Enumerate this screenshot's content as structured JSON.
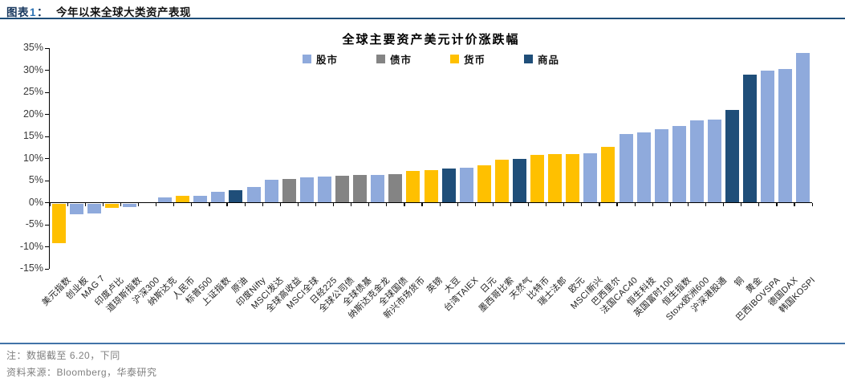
{
  "figure": {
    "label_prefix": "图表",
    "label_number": "1",
    "label_colon": "：",
    "title": "今年以来全球大类资产表现"
  },
  "colors": {
    "stock": "#8FAADC",
    "bond": "#848484",
    "currency": "#FFC000",
    "commodity": "#1F4E79",
    "header_rule": "#1F4E79",
    "bottom_rule": "#4173A8",
    "figure_number_accent": "#2E74B5",
    "axis": "#000000",
    "footer_text": "#808080"
  },
  "chart_data": {
    "type": "bar",
    "title": "全球主要资产美元计价涨跌幅",
    "xlabel": "",
    "ylabel": "",
    "unit": "%",
    "ylim": [
      -15,
      35
    ],
    "ytick_step": 5,
    "ytick_labels": [
      "35%",
      "30%",
      "25%",
      "20%",
      "15%",
      "10%",
      "5%",
      "0%",
      "-5%",
      "-10%",
      "-15%"
    ],
    "grid": false,
    "legend_position": "top-center",
    "legend": [
      {
        "label": "股市",
        "key": "stock"
      },
      {
        "label": "债市",
        "key": "bond"
      },
      {
        "label": "货币",
        "key": "currency"
      },
      {
        "label": "商品",
        "key": "commodity"
      }
    ],
    "bars": [
      {
        "label": "美元指数",
        "value": -9.0,
        "category": "currency"
      },
      {
        "label": "创业板",
        "value": -2.5,
        "category": "stock"
      },
      {
        "label": "MAG 7",
        "value": -2.3,
        "category": "stock"
      },
      {
        "label": "印度卢比",
        "value": -1.0,
        "category": "currency"
      },
      {
        "label": "道琼斯指数",
        "value": -0.8,
        "category": "stock"
      },
      {
        "label": "沪深300",
        "value": 0.0,
        "category": "stock"
      },
      {
        "label": "纳斯达克",
        "value": 1.2,
        "category": "stock"
      },
      {
        "label": "人民币",
        "value": 1.5,
        "category": "currency"
      },
      {
        "label": "标普500",
        "value": 1.6,
        "category": "stock"
      },
      {
        "label": "上证指数",
        "value": 2.5,
        "category": "stock"
      },
      {
        "label": "原油",
        "value": 2.8,
        "category": "commodity"
      },
      {
        "label": "印度Nifty",
        "value": 3.5,
        "category": "stock"
      },
      {
        "label": "MSCI发达",
        "value": 5.2,
        "category": "stock"
      },
      {
        "label": "全球高收益",
        "value": 5.3,
        "category": "bond"
      },
      {
        "label": "MSCI全球",
        "value": 5.7,
        "category": "stock"
      },
      {
        "label": "日经225",
        "value": 6.0,
        "category": "stock"
      },
      {
        "label": "全球公司债",
        "value": 6.1,
        "category": "bond"
      },
      {
        "label": "全球债基",
        "value": 6.2,
        "category": "bond"
      },
      {
        "label": "纳斯达克金龙",
        "value": 6.3,
        "category": "stock"
      },
      {
        "label": "全球国债",
        "value": 6.4,
        "category": "bond"
      },
      {
        "label": "新兴市场货币",
        "value": 7.2,
        "category": "currency"
      },
      {
        "label": "英镑",
        "value": 7.3,
        "category": "currency"
      },
      {
        "label": "大豆",
        "value": 7.8,
        "category": "commodity"
      },
      {
        "label": "台湾TAIEX",
        "value": 7.9,
        "category": "stock"
      },
      {
        "label": "日元",
        "value": 8.5,
        "category": "currency"
      },
      {
        "label": "墨西哥比索",
        "value": 9.7,
        "category": "currency"
      },
      {
        "label": "天然气",
        "value": 10.0,
        "category": "commodity"
      },
      {
        "label": "比特币",
        "value": 10.9,
        "category": "currency"
      },
      {
        "label": "瑞士法郎",
        "value": 11.0,
        "category": "currency"
      },
      {
        "label": "欧元",
        "value": 11.0,
        "category": "currency"
      },
      {
        "label": "MSCI新兴",
        "value": 11.1,
        "category": "stock"
      },
      {
        "label": "巴西里尔",
        "value": 12.6,
        "category": "currency"
      },
      {
        "label": "法国CAC40",
        "value": 15.6,
        "category": "stock"
      },
      {
        "label": "恒生科技",
        "value": 15.9,
        "category": "stock"
      },
      {
        "label": "英国富时100",
        "value": 16.7,
        "category": "stock"
      },
      {
        "label": "恒生指数",
        "value": 17.3,
        "category": "stock"
      },
      {
        "label": "Stoxx欧洲600",
        "value": 18.7,
        "category": "stock"
      },
      {
        "label": "沪深港股通",
        "value": 18.8,
        "category": "stock"
      },
      {
        "label": "铜",
        "value": 21.0,
        "category": "commodity"
      },
      {
        "label": "黄金",
        "value": 29.0,
        "category": "commodity"
      },
      {
        "label": "巴西IBOVSPA",
        "value": 30.0,
        "category": "stock"
      },
      {
        "label": "德国DAX",
        "value": 30.3,
        "category": "stock"
      },
      {
        "label": "韩国KOSPI",
        "value": 33.9,
        "category": "stock"
      }
    ]
  },
  "footer": {
    "note": "注：数据截至 6.20，下同",
    "source": "资料来源：Bloomberg，华泰研究"
  }
}
